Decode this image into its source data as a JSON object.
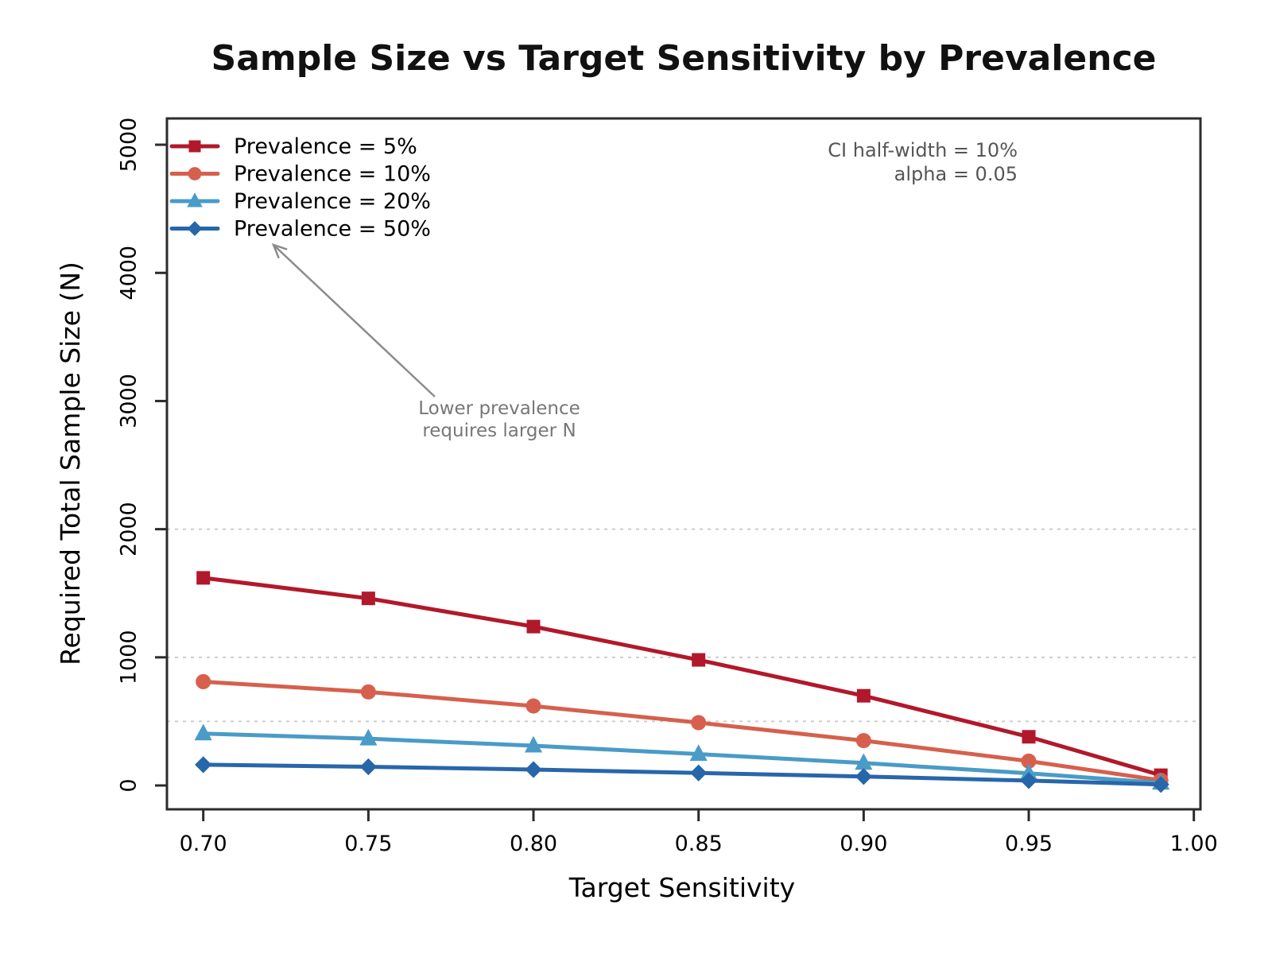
{
  "chart_data": {
    "type": "line",
    "title": "Sample Size vs Target Sensitivity by Prevalence",
    "xlabel": "Target Sensitivity",
    "ylabel": "Required Total Sample Size (N)",
    "x": [
      0.7,
      0.75,
      0.8,
      0.85,
      0.9,
      0.95,
      0.99
    ],
    "x_tick_values": [
      0.7,
      0.75,
      0.8,
      0.85,
      0.9,
      0.95,
      1.0
    ],
    "x_tick_labels": [
      "0.70",
      "0.75",
      "0.80",
      "0.85",
      "0.90",
      "0.95",
      "1.00"
    ],
    "y_tick_values": [
      0,
      1000,
      2000,
      3000,
      4000,
      5000
    ],
    "y_tick_labels": [
      "0",
      "1000",
      "2000",
      "3000",
      "4000",
      "5000"
    ],
    "xlim": [
      0.689,
      1.002
    ],
    "ylim": [
      -186,
      5205
    ],
    "grid": "horizontal dotted",
    "gridline_y_values": [
      500,
      1000,
      2000
    ],
    "gridline_color": "#cccccc",
    "axis_color": "#2b2b2b",
    "legend_position": "top-left",
    "series": [
      {
        "name": "Prevalence = 5%",
        "marker": "square",
        "color": "#b2182b",
        "values": [
          1620,
          1460,
          1240,
          980,
          700,
          380,
          80
        ]
      },
      {
        "name": "Prevalence = 10%",
        "marker": "circle",
        "color": "#d6604d",
        "values": [
          810,
          730,
          620,
          490,
          350,
          190,
          40
        ]
      },
      {
        "name": "Prevalence = 20%",
        "marker": "triangle",
        "color": "#4a9bc7",
        "values": [
          405,
          365,
          310,
          245,
          175,
          95,
          20
        ]
      },
      {
        "name": "Prevalence = 50%",
        "marker": "diamond",
        "color": "#2866aa",
        "values": [
          162,
          146,
          124,
          98,
          70,
          38,
          8
        ]
      }
    ],
    "annotations": {
      "params": [
        "CI half-width = 10%",
        "alpha = 0.05"
      ],
      "params_color": "#555555",
      "note": [
        "Lower prevalence",
        "requires larger N"
      ],
      "note_color": "#777777",
      "arrow_color": "#8c8c8c"
    },
    "title_color": "#111111"
  }
}
